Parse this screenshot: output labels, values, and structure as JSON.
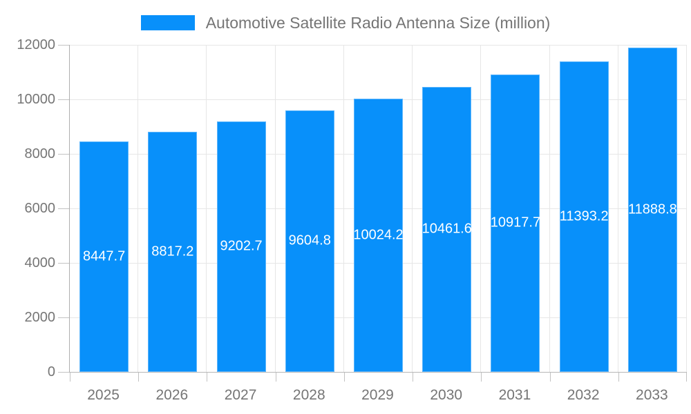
{
  "legend": {
    "label": "Automotive Satellite Radio Antenna Size (million)"
  },
  "chart_data": {
    "type": "bar",
    "title": "Automotive Satellite Radio Antenna Size (million)",
    "categories": [
      "2025",
      "2026",
      "2027",
      "2028",
      "2029",
      "2030",
      "2031",
      "2032",
      "2033"
    ],
    "values": [
      8447.7,
      8817.2,
      9202.7,
      9604.8,
      10024.2,
      10461.6,
      10917.7,
      11393.2,
      11888.8
    ],
    "bar_labels": [
      "8447.7",
      "8817.2",
      "9202.7",
      "9604.8",
      "10024.2",
      "10461.6",
      "10917.7",
      "11393.2",
      "11888.8"
    ],
    "xlabel": "",
    "ylabel": "",
    "ylim": [
      0,
      12000
    ],
    "yticks": [
      0,
      2000,
      4000,
      6000,
      8000,
      10000,
      12000
    ],
    "grid": true,
    "legend_position": "top",
    "colors": {
      "bar": "#0890fa",
      "bar_label_text": "#ffffff",
      "axis_text": "#757575",
      "legend_text": "#757575",
      "gridline": "#e6e6e6",
      "axis_line": "#aeaeae",
      "tick_line": "#c2c2c2",
      "background": "#ffffff"
    }
  }
}
